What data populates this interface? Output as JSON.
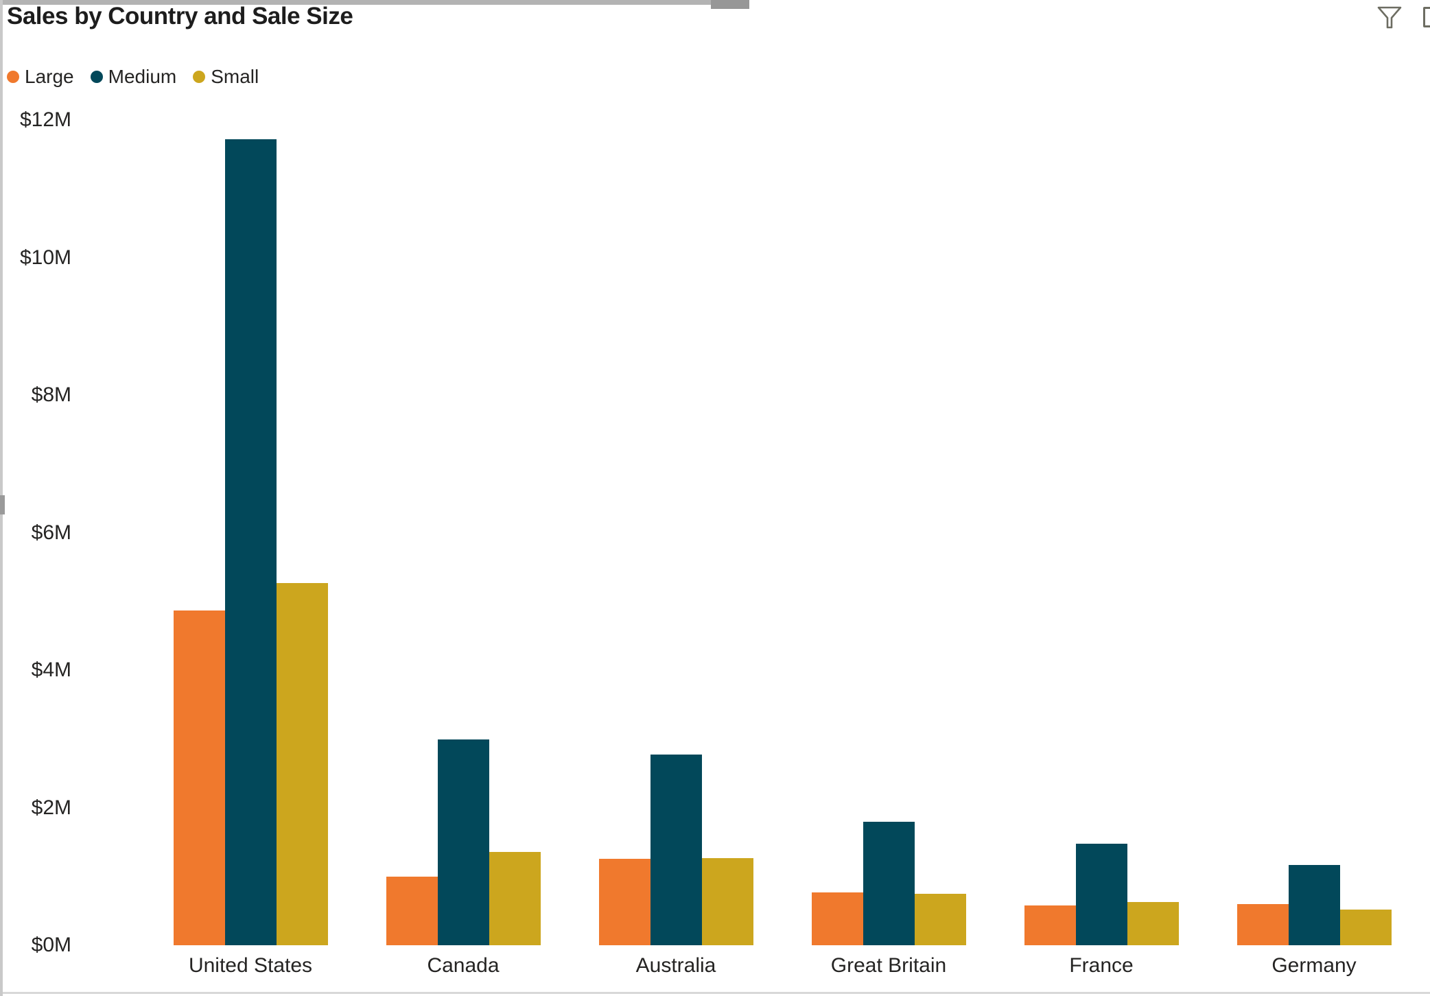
{
  "header": {
    "title": "Sales by Country and Sale Size",
    "icons": [
      {
        "name": "filter-icon"
      },
      {
        "name": "clipped-options-icon"
      }
    ]
  },
  "chrome": {
    "scrollbar_color": "#b3b3b3",
    "thumb_color": "#979797"
  },
  "chart_data": {
    "type": "bar",
    "title": "Sales by Country and Sale Size",
    "xlabel": "",
    "ylabel": "",
    "grid": false,
    "legend_position": "top-left",
    "ylim": [
      0,
      12
    ],
    "ytick_labels": [
      "$0M",
      "$2M",
      "$4M",
      "$6M",
      "$8M",
      "$10M",
      "$12M"
    ],
    "value_unit": "millions USD",
    "categories": [
      "United States",
      "Canada",
      "Australia",
      "Great Britain",
      "France",
      "Germany"
    ],
    "series": [
      {
        "name": "Large",
        "color": "#F0792D",
        "values": [
          4.87,
          1.0,
          1.26,
          0.77,
          0.58,
          0.6
        ]
      },
      {
        "name": "Medium",
        "color": "#02485A",
        "values": [
          11.72,
          2.99,
          2.77,
          1.8,
          1.48,
          1.17
        ]
      },
      {
        "name": "Small",
        "color": "#CCA61E",
        "values": [
          5.27,
          1.36,
          1.27,
          0.75,
          0.63,
          0.52
        ]
      }
    ]
  }
}
